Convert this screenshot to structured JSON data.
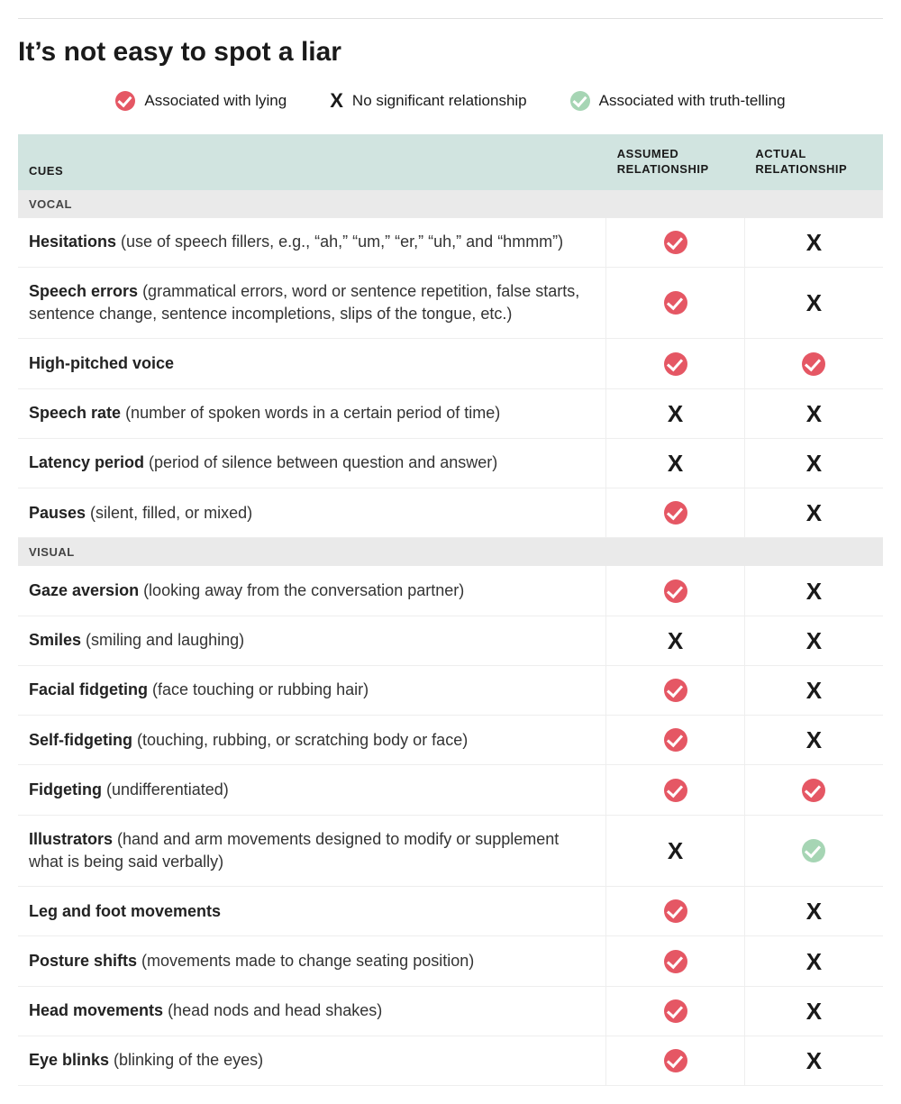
{
  "title": "It’s not easy to spot a liar",
  "legend": {
    "lying": "Associated with lying",
    "none": "No significant relationship",
    "truth": "Associated with truth-telling"
  },
  "colors": {
    "header_bg": "#d1e4e0",
    "section_bg": "#eaeaea",
    "row_border": "#eeeeee",
    "check_red": "#e55764",
    "check_green": "#a6d5b4",
    "x_color": "#1a1a1a"
  },
  "columns": {
    "cues": "Cues",
    "assumed": "Assumed Relationship",
    "actual": "Actual Relationship"
  },
  "sections": [
    {
      "label": "Vocal",
      "rows": [
        {
          "term": "Hesitations",
          "desc": " (use of speech fillers, e.g., “ah,” “um,” “er,” “uh,” and “hmmm”)",
          "assumed": "lying",
          "actual": "none"
        },
        {
          "term": "Speech errors",
          "desc": " (grammatical errors, word or sentence repetition, false starts, sentence change, sentence incompletions, slips of the tongue, etc.)",
          "assumed": "lying",
          "actual": "none"
        },
        {
          "term": "High-pitched voice",
          "desc": "",
          "assumed": "lying",
          "actual": "lying"
        },
        {
          "term": "Speech rate",
          "desc": " (number of spoken words in a certain period of time)",
          "assumed": "none",
          "actual": "none"
        },
        {
          "term": "Latency period",
          "desc": " (period of silence between question and answer)",
          "assumed": "none",
          "actual": "none"
        },
        {
          "term": "Pauses",
          "desc": " (silent, filled, or mixed)",
          "assumed": "lying",
          "actual": "none"
        }
      ]
    },
    {
      "label": "Visual",
      "rows": [
        {
          "term": "Gaze aversion",
          "desc": " (looking away from the conversation partner)",
          "assumed": "lying",
          "actual": "none"
        },
        {
          "term": "Smiles",
          "desc": " (smiling and laughing)",
          "assumed": "none",
          "actual": "none"
        },
        {
          "term": "Facial fidgeting",
          "desc": " (face touching or rubbing hair)",
          "assumed": "lying",
          "actual": "none"
        },
        {
          "term": "Self-fidgeting",
          "desc": " (touching, rubbing, or scratching body or face)",
          "assumed": "lying",
          "actual": "none"
        },
        {
          "term": "Fidgeting",
          "desc": " (undifferentiated)",
          "assumed": "lying",
          "actual": "lying"
        },
        {
          "term": "Illustrators",
          "desc": " (hand and arm movements designed to modify or supplement what is being said verbally)",
          "assumed": "none",
          "actual": "truth"
        },
        {
          "term": "Leg and foot movements",
          "desc": "",
          "assumed": "lying",
          "actual": "none"
        },
        {
          "term": "Posture shifts",
          "desc": " (movements made to change seating position)",
          "assumed": "lying",
          "actual": "none"
        },
        {
          "term": "Head movements",
          "desc": " (head nods and head shakes)",
          "assumed": "lying",
          "actual": "none"
        },
        {
          "term": "Eye blinks",
          "desc": " (blinking of the eyes)",
          "assumed": "lying",
          "actual": "none"
        }
      ]
    }
  ]
}
